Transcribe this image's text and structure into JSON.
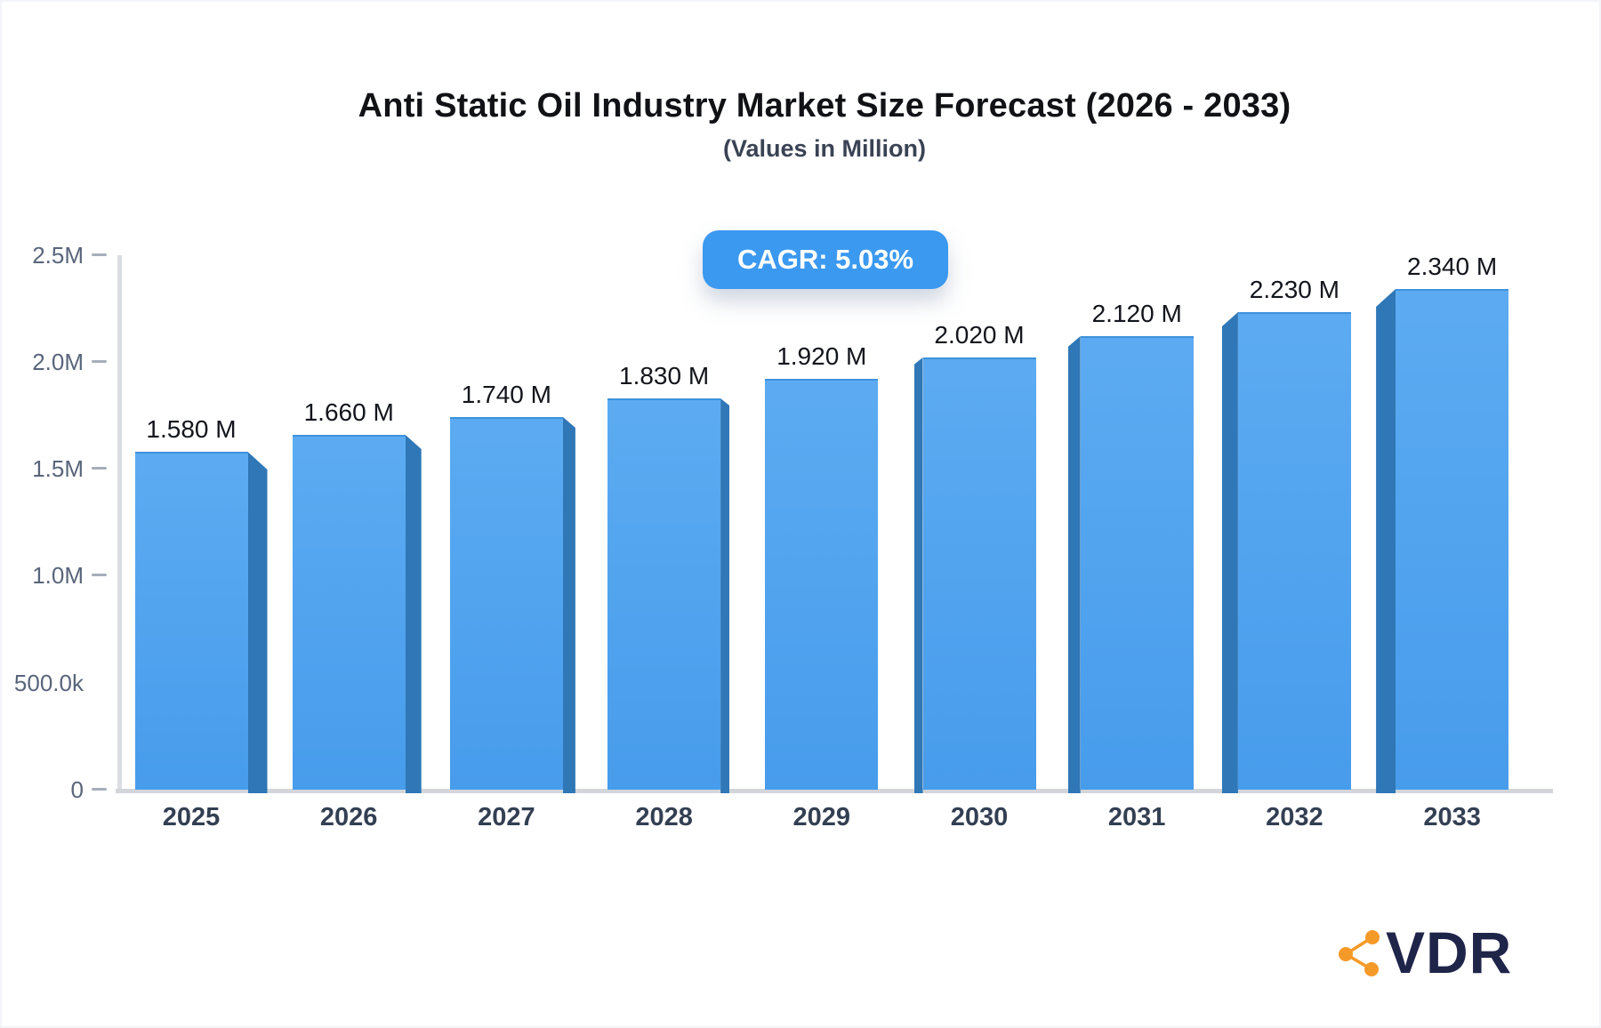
{
  "header": {
    "title": "Anti Static Oil Industry Market Size Forecast (2026 - 2033)",
    "subtitle": "(Values in Million)",
    "cagr_badge": "CAGR: 5.03%"
  },
  "chart_data": {
    "type": "bar",
    "title": "Anti Static Oil Industry Market Size Forecast (2026 - 2033)",
    "subtitle": "(Values in Million)",
    "unit": "Million",
    "categories": [
      "2025",
      "2026",
      "2027",
      "2028",
      "2029",
      "2030",
      "2031",
      "2032",
      "2033"
    ],
    "values": [
      1.58,
      1.66,
      1.74,
      1.83,
      1.92,
      2.02,
      2.12,
      2.23,
      2.34
    ],
    "value_labels": [
      "1.580 M",
      "1.660 M",
      "1.740 M",
      "1.830 M",
      "1.920 M",
      "2.020 M",
      "2.120 M",
      "2.230 M",
      "2.340 M"
    ],
    "xlabel": "",
    "ylabel": "",
    "ylim": [
      0,
      2.5
    ],
    "grid": false,
    "legend": false,
    "y_ticks": [
      {
        "label": "2.5M",
        "value": 2.5,
        "dash": true
      },
      {
        "label": "2.0M",
        "value": 2.0,
        "dash": true
      },
      {
        "label": "1.5M",
        "value": 1.5,
        "dash": true
      },
      {
        "label": "1.0M",
        "value": 1.0,
        "dash": true
      },
      {
        "label": "500.0k",
        "value": 0.5,
        "dash": false
      },
      {
        "label": "0",
        "value": 0.0,
        "dash": true
      }
    ],
    "colors": {
      "bar_face_top": "#5cabf2",
      "bar_face_bottom": "#479ceb",
      "bar_side": "#2f77b6",
      "badge_blue": "#3b99f0",
      "axis_line": "#dadde1",
      "baseline": "#d2d6da",
      "tick_dash": "#a6aeba"
    }
  },
  "branding": {
    "logo_text": "VDR",
    "logo_icon": "share-network-icon",
    "logo_orange": "#f59a28",
    "logo_navy": "#1f2449"
  }
}
